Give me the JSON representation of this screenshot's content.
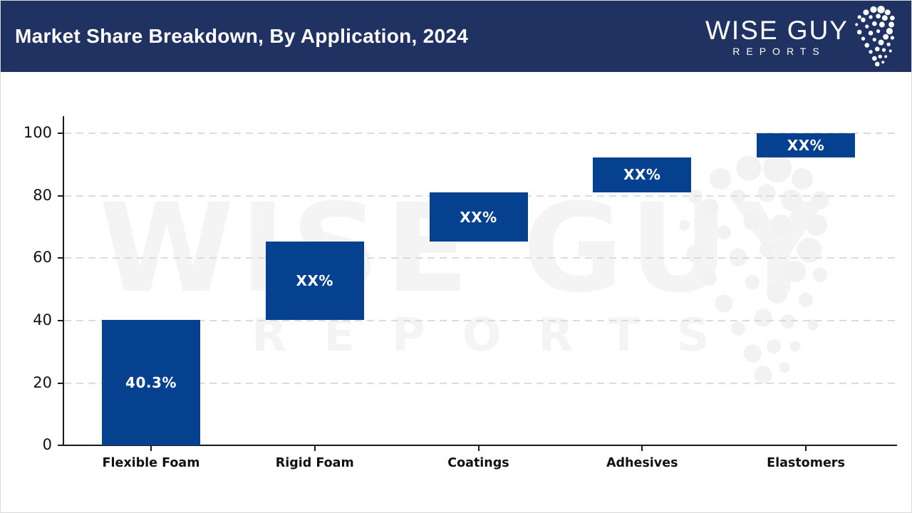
{
  "header": {
    "title": "Market Share Breakdown, By Application, 2024",
    "bg_color": "#1f3262",
    "logo": {
      "line1": "WISE GUY",
      "line2": "REPORTS"
    }
  },
  "watermark": {
    "line1": "WISE GUY",
    "line2": "REPORTS"
  },
  "chart_data": {
    "type": "bar",
    "subtype": "waterfall",
    "title": "Market Share Breakdown, By Application, 2024",
    "categories": [
      "Flexible Foam",
      "Rigid Foam",
      "Coatings",
      "Adhesives",
      "Elastomers"
    ],
    "segments": [
      {
        "category": "Flexible Foam",
        "label": "40.3%",
        "start": 0,
        "end": 40.3
      },
      {
        "category": "Rigid Foam",
        "label": "XX%",
        "start": 40.3,
        "end": 65.3
      },
      {
        "category": "Coatings",
        "label": "XX%",
        "start": 65.3,
        "end": 81.0
      },
      {
        "category": "Adhesives",
        "label": "XX%",
        "start": 81.0,
        "end": 92.3
      },
      {
        "category": "Elastomers",
        "label": "XX%",
        "start": 92.3,
        "end": 100
      }
    ],
    "yticks": [
      0,
      20,
      40,
      60,
      80,
      100
    ],
    "ylim": [
      0,
      105
    ],
    "grid": "dashed-horizontal",
    "legend": "none",
    "bar_color": "#05418f",
    "bar_label_color": "#ffffff",
    "grid_color": "#dcdcdc",
    "axis_color": "#1a1a1a",
    "watermark_color": "#f4f4f4"
  }
}
